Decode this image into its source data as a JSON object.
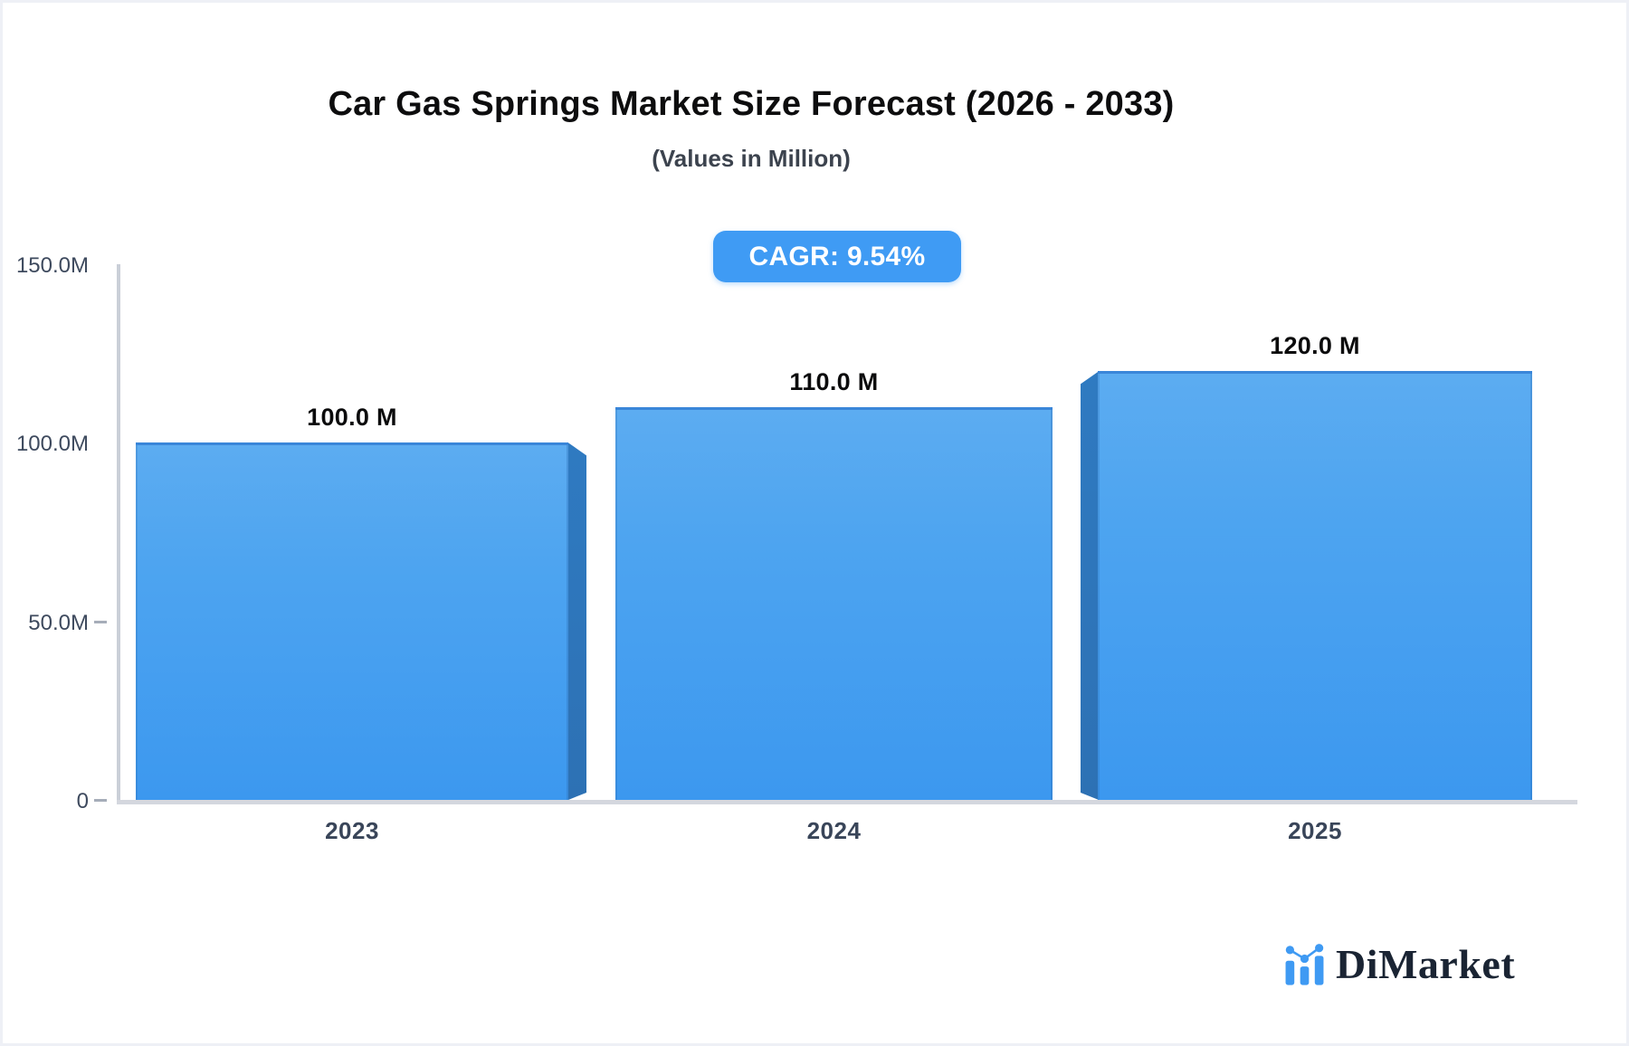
{
  "chart_data": {
    "type": "bar",
    "title": "Car Gas Springs Market Size Forecast (2026 - 2033)",
    "subtitle": "(Values in Million)",
    "unit": "Million",
    "categories": [
      "2023",
      "2024",
      "2025"
    ],
    "values": [
      100.0,
      110.0,
      120.0
    ],
    "value_labels": [
      "100.0 M",
      "110.0 M",
      "120.0 M"
    ],
    "ylim": [
      0,
      150
    ],
    "yticks": [
      {
        "label": "150.0M",
        "value": 150,
        "dash": false
      },
      {
        "label": "100.0M",
        "value": 100,
        "dash": false
      },
      {
        "label": "50.0M",
        "value": 50,
        "dash": true
      },
      {
        "label": "0",
        "value": 0,
        "dash": true
      }
    ],
    "grid": false,
    "legend": false,
    "bar_color_top": "#5cacf1",
    "bar_color_bottom": "#3c98ef",
    "bar_side_color": "#2d71b4"
  },
  "badge": {
    "label": "CAGR: 9.54%",
    "bg_color": "#3f9bf4",
    "text_color": "#ffffff"
  },
  "branding": {
    "logo_text": "DiMarket",
    "logo_icon": "bar-chart-trend-icon",
    "icon_color": "#3f9af3",
    "text_color": "#1a2433"
  }
}
